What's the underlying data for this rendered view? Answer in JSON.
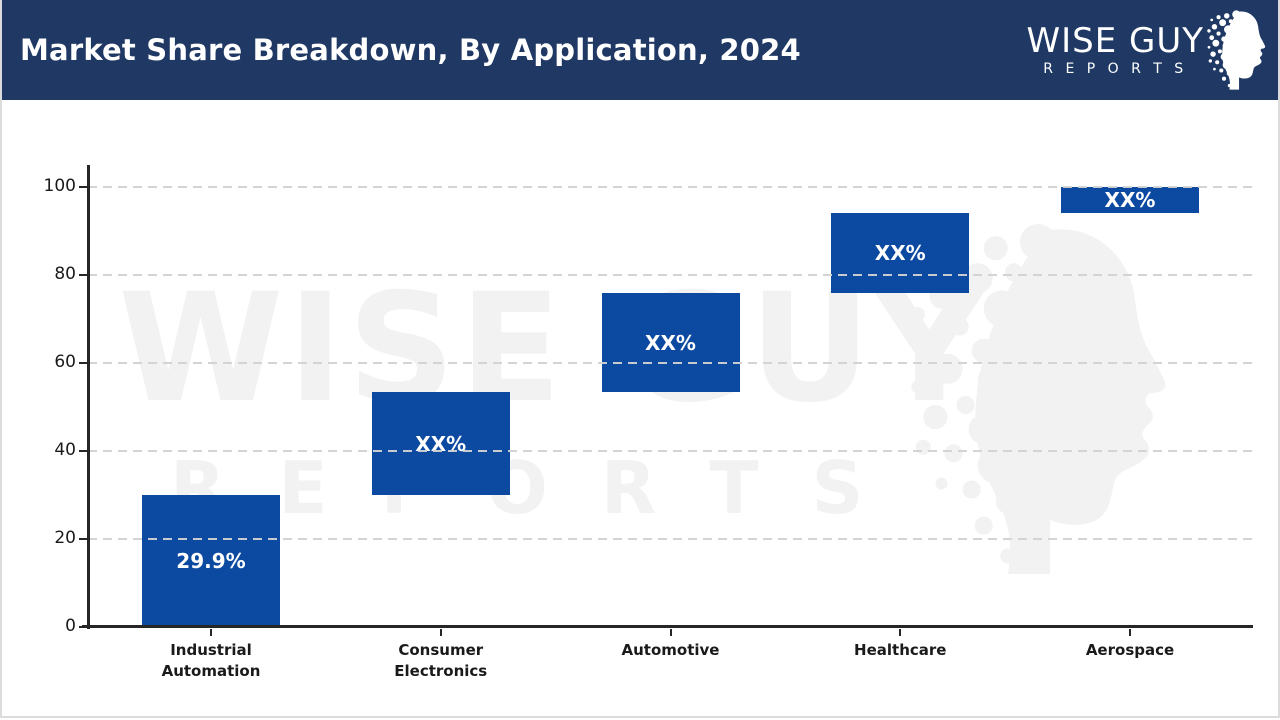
{
  "header": {
    "title": "Market Share Breakdown, By Application, 2024",
    "logo": {
      "name": "WISE GUY",
      "sub": "R E P O R T S"
    }
  },
  "watermark": {
    "name": "WISE GUY",
    "sub": "R E P O R T S"
  },
  "colors": {
    "header_bg": "#1f3864",
    "bar": "#0c4aa1",
    "axis": "#262626",
    "gridline": "#d2d2d2",
    "bar_label_text": "#ffffff",
    "watermark": "#f2f2f3",
    "page_border": "#dcdcdc"
  },
  "chart_data": {
    "type": "bar",
    "subtype": "floating-waterfall",
    "title": "Market Share Breakdown, By Application, 2024",
    "categories": [
      "Industrial Automation",
      "Consumer Electronics",
      "Automotive",
      "Healthcare",
      "Aerospace"
    ],
    "category_label_lines": [
      [
        "Industrial",
        "Automation"
      ],
      [
        "Consumer",
        "Electronics"
      ],
      [
        "Automotive"
      ],
      [
        "Healthcare"
      ],
      [
        "Aerospace"
      ]
    ],
    "segments": [
      {
        "category": "Industrial Automation",
        "start": 0,
        "end": 29.9,
        "label": "29.9%"
      },
      {
        "category": "Consumer Electronics",
        "start": 29.9,
        "end": 53.4,
        "label": "XX%"
      },
      {
        "category": "Automotive",
        "start": 53.4,
        "end": 75.8,
        "label": "XX%"
      },
      {
        "category": "Healthcare",
        "start": 75.8,
        "end": 94.0,
        "label": "XX%"
      },
      {
        "category": "Aerospace",
        "start": 94.0,
        "end": 100.0,
        "label": "XX%"
      }
    ],
    "yticks": [
      0,
      20,
      40,
      60,
      80,
      100
    ],
    "ylim": [
      0,
      100
    ],
    "xlabel": "",
    "ylabel": "",
    "grid": "horizontal-dashed",
    "legend": "none",
    "bar_color": "#0c4aa1"
  }
}
